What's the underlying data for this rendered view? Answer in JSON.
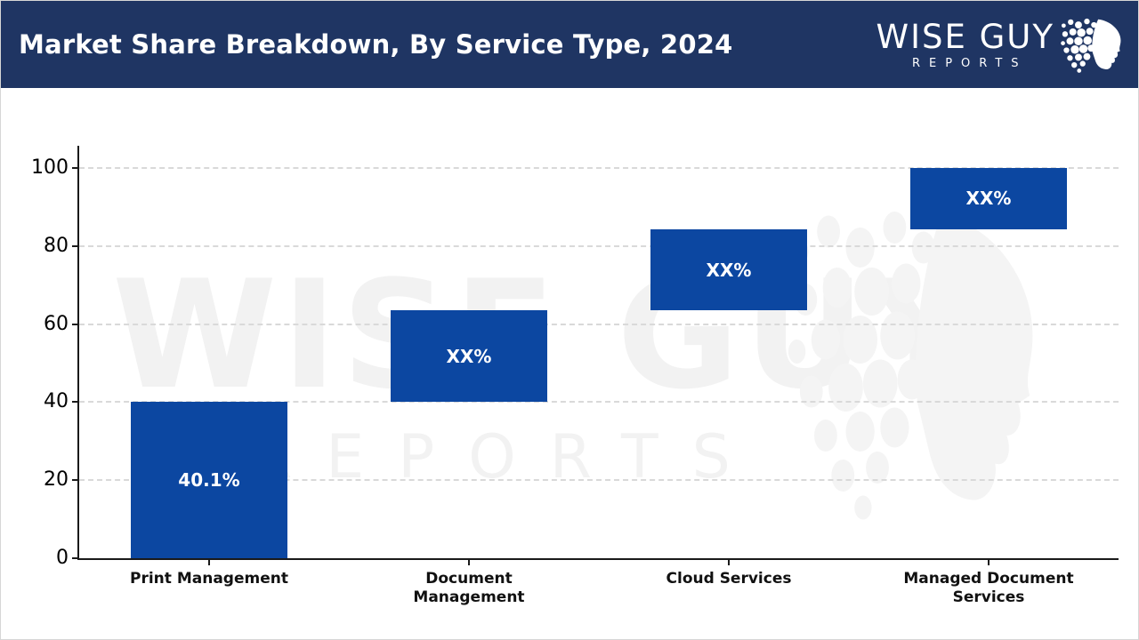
{
  "header": {
    "title": "Market Share Breakdown, By Service Type, 2024",
    "logo": {
      "line1": "WISE GUY",
      "line2": "REPORTS"
    }
  },
  "watermark": {
    "line1": "WISE GUY",
    "line2": "REPORTS"
  },
  "chart_data": {
    "type": "bar",
    "subtype": "waterfall",
    "title": "Market Share Breakdown, By Service Type, 2024",
    "categories": [
      "Print Management",
      "Document\nManagement",
      "Cloud Services",
      "Managed Document\nServices"
    ],
    "segments": [
      {
        "category": "Print Management",
        "start": 0,
        "end": 40.1,
        "label": "40.1%"
      },
      {
        "category": "Document Management",
        "start": 40.1,
        "end": 63.5,
        "label": "XX%"
      },
      {
        "category": "Cloud Services",
        "start": 63.5,
        "end": 84.3,
        "label": "XX%"
      },
      {
        "category": "Managed Document Services",
        "start": 84.3,
        "end": 100,
        "label": "XX%"
      }
    ],
    "ylim": [
      0,
      100
    ],
    "yticks": [
      0,
      20,
      40,
      60,
      80,
      100
    ],
    "grid": "horizontal-dashed",
    "legend": "none",
    "bar_color": "#0c47a1",
    "bar_label_color": "#ffffff",
    "header_color": "#1f3563",
    "gridline_color": "#d9d9d9",
    "axis_color": "#1a1a1a"
  }
}
